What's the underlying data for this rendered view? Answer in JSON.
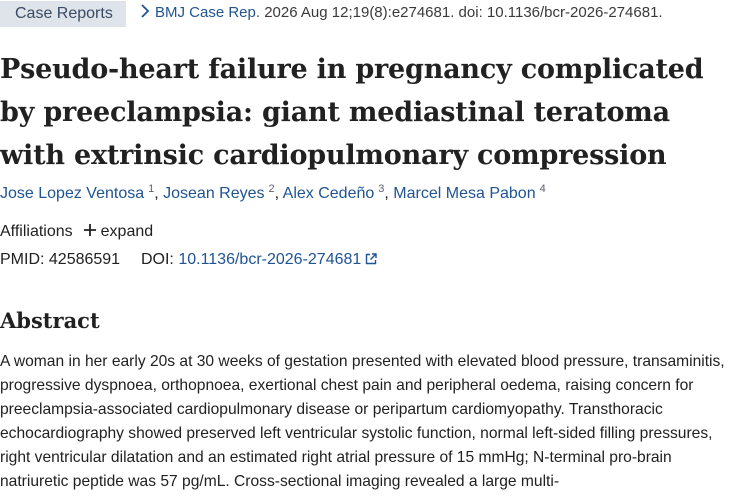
{
  "header": {
    "badge": "Case Reports",
    "journal": "BMJ Case Rep.",
    "citation": " 2026 Aug 12;19(8):e274681. doi: 10.1136/bcr-2026-274681."
  },
  "article": {
    "title": "Pseudo-heart failure in pregnancy complicated by preeclampsia: giant mediastinal teratoma with extrinsic cardiopulmonary compression",
    "authors": [
      {
        "name": "Jose Lopez Ventosa",
        "sup": "1"
      },
      {
        "name": "Josean Reyes",
        "sup": "2"
      },
      {
        "name": "Alex Cedeño",
        "sup": "3"
      },
      {
        "name": "Marcel Mesa Pabon",
        "sup": "4"
      }
    ],
    "separator": ", ",
    "affiliations_label": "Affiliations",
    "expand_label": "expand",
    "pmid_label": "PMID: ",
    "pmid": "42586591",
    "doi_label": "DOI: ",
    "doi": "10.1136/bcr-2026-274681"
  },
  "abstract": {
    "heading": "Abstract",
    "text": "A woman in her early 20s at 30 weeks of gestation presented with elevated blood pressure, transaminitis, progressive dyspnoea, orthopnoea, exertional chest pain and peripheral oedema, raising concern for preeclampsia-associated cardiopulmonary disease or peripartum cardiomyopathy. Transthoracic echocardiography showed preserved left ventricular systolic function, normal left-sided filling pressures, right ventricular dilatation and an estimated right atrial pressure of 15 mmHg; N-terminal pro-brain natriuretic peptide was 57 pg/mL. Cross-sectional imaging revealed a large multi-"
  },
  "icons": {
    "chevron": "chevron-right-icon",
    "plus": "plus-icon",
    "external": "external-link-icon"
  },
  "colors": {
    "link": "#205493",
    "badge_bg": "#dfe3ea",
    "text": "#212121"
  }
}
